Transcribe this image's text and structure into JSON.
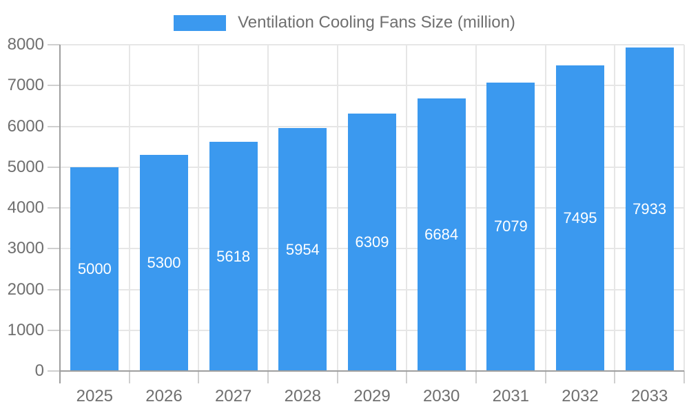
{
  "chart_data": {
    "type": "bar",
    "title": "Ventilation Cooling Fans Size (million)",
    "legend": {
      "position": "top",
      "label": "Ventilation Cooling Fans Size (million)"
    },
    "categories": [
      "2025",
      "2026",
      "2027",
      "2028",
      "2029",
      "2030",
      "2031",
      "2032",
      "2033"
    ],
    "series": [
      {
        "name": "Ventilation Cooling Fans Size (million)",
        "values": [
          5000,
          5300,
          5618,
          5954,
          6309,
          6684,
          7079,
          7495,
          7933
        ]
      }
    ],
    "value_labels": [
      "5000",
      "5300",
      "5618",
      "5954",
      "6309",
      "6684",
      "7079",
      "7495",
      "7933"
    ],
    "xlabel": "",
    "ylabel": "",
    "ylim": [
      0,
      8000
    ],
    "yticks": [
      0,
      1000,
      2000,
      3000,
      4000,
      5000,
      6000,
      7000,
      8000
    ],
    "grid": true,
    "colors": {
      "bar": "#3B99EF",
      "bar_value_text": "#FFFFFF",
      "axis_text": "#6F6F6F",
      "grid_line": "#E6E6E6",
      "tick_line": "#CFCFCF",
      "axis_line": "#9E9E9E",
      "background": "#FFFFFF"
    }
  }
}
